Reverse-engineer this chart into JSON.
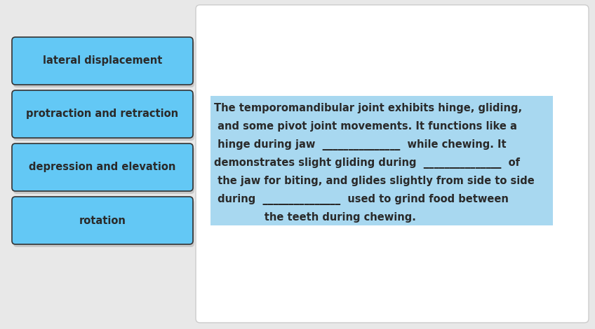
{
  "background_color": "#e8e8e8",
  "left_buttons": [
    "lateral displacement",
    "protraction and retraction",
    "depression and elevation",
    "rotation"
  ],
  "button_bg": "#63c8f5",
  "button_border": "#333333",
  "button_text_color": "#2a2a2a",
  "button_fontsize": 10.5,
  "right_panel_bg": "#ffffff",
  "right_panel_border": "#cccccc",
  "highlight_bg": "#a8d8f0",
  "paragraph_lines": [
    "The temporomandibular joint exhibits hinge, gliding,",
    " and some pivot joint movements. It functions like a",
    " hinge during jaw  _______________  while chewing. It",
    "demonstrates slight gliding during  _______________  of",
    " the jaw for biting, and glides slightly from side to side",
    " during  _______________  used to grind food between",
    "              the teeth during chewing."
  ],
  "text_fontsize": 10.5,
  "text_color": "#2a2a2a"
}
